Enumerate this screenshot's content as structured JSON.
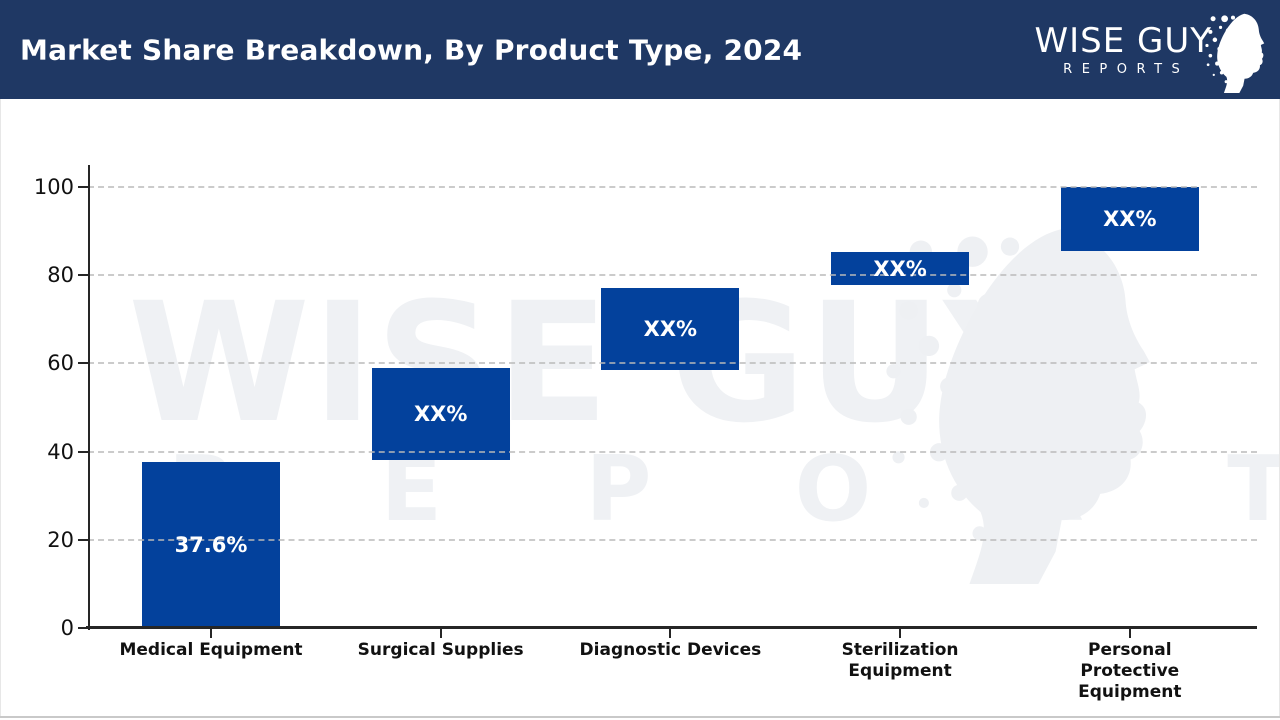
{
  "header": {
    "title": "Market Share Breakdown, By Product Type, 2024",
    "logo": {
      "line1": "WISE GUY",
      "line2": "REPORTS"
    }
  },
  "watermark": {
    "line1": "WISE GUY",
    "line2": "R E P O R T S"
  },
  "colors": {
    "header_bg": "#1f3864",
    "bar": "#03419c",
    "axis": "#262626",
    "grid": "#bababa",
    "bar_label_text": "#ffffff",
    "tick_text": "#111111",
    "watermark": "#eff1f4"
  },
  "chart_data": {
    "type": "bar",
    "subtype": "stacked-waterfall",
    "title": "Market Share Breakdown, By Product Type, 2024",
    "categories": [
      "Medical Equipment",
      "Surgical Supplies",
      "Diagnostic Devices",
      "Sterilization Equipment",
      "Personal Protective Equipment"
    ],
    "category_label_lines": [
      [
        "Medical Equipment"
      ],
      [
        "Surgical Supplies"
      ],
      [
        "Diagnostic Devices"
      ],
      [
        "Sterilization",
        "Equipment"
      ],
      [
        "Personal",
        "Protective",
        "Equipment"
      ]
    ],
    "segments": [
      {
        "category": "Medical Equipment",
        "start": 0,
        "end": 37.6,
        "label": "37.6%"
      },
      {
        "category": "Surgical Supplies",
        "start": 38.0,
        "end": 59.0,
        "label": "XX%"
      },
      {
        "category": "Diagnostic Devices",
        "start": 58.6,
        "end": 77.0,
        "label": "XX%"
      },
      {
        "category": "Sterilization Equipment",
        "start": 77.7,
        "end": 85.2,
        "label": "XX%"
      },
      {
        "category": "Personal Protective Equipment",
        "start": 85.5,
        "end": 100.0,
        "label": "XX%"
      }
    ],
    "yticks": [
      0,
      20,
      40,
      60,
      80,
      100
    ],
    "ylim": [
      0,
      105
    ],
    "xlabel": "",
    "ylabel": "",
    "grid": "horizontal dashed",
    "legend": "none",
    "bar_color": "#03419c"
  }
}
